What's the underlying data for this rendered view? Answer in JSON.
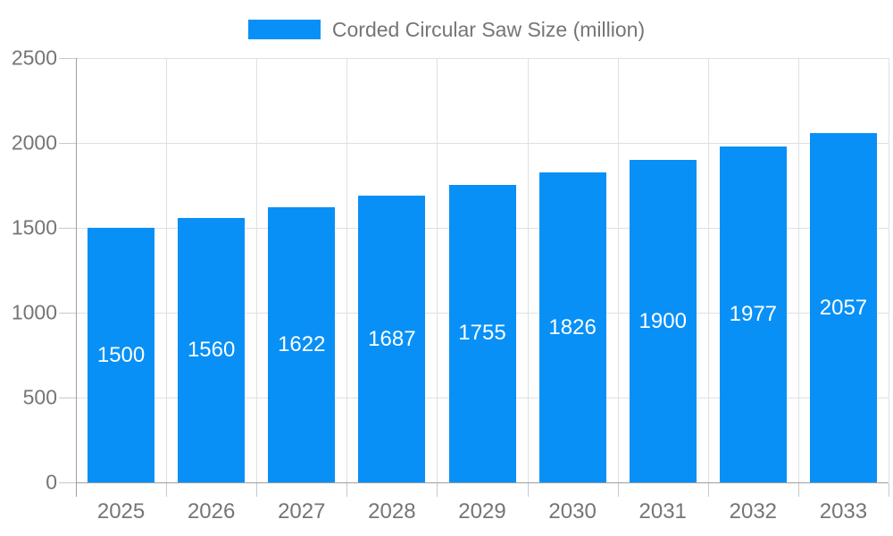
{
  "legend": {
    "label": "Corded Circular Saw Size (million)"
  },
  "chart_data": {
    "type": "bar",
    "title": "Corded Circular Saw Size (million)",
    "categories": [
      "2025",
      "2026",
      "2027",
      "2028",
      "2029",
      "2030",
      "2031",
      "2032",
      "2033"
    ],
    "values": [
      1500,
      1560,
      1622,
      1687,
      1755,
      1826,
      1900,
      1977,
      2057
    ],
    "value_labels": [
      "1500",
      "1560",
      "1622",
      "1687",
      "1755",
      "1826",
      "1900",
      "1977",
      "2057"
    ],
    "xlabel": "",
    "ylabel": "",
    "ylim": [
      0,
      2500
    ],
    "yticks": [
      0,
      500,
      1000,
      1500,
      2000,
      2500
    ],
    "ytick_labels": [
      "0",
      "500",
      "1000",
      "1500",
      "2000",
      "2500"
    ],
    "grid": true,
    "legend_position": "top-center",
    "colors": {
      "bar": "#0890f6",
      "value_label": "#ffffff",
      "grid": "#e0e0e0",
      "axis": "#9e9e9e",
      "tick": "#c9c9c9",
      "text": "#757575",
      "background": "#ffffff"
    }
  }
}
